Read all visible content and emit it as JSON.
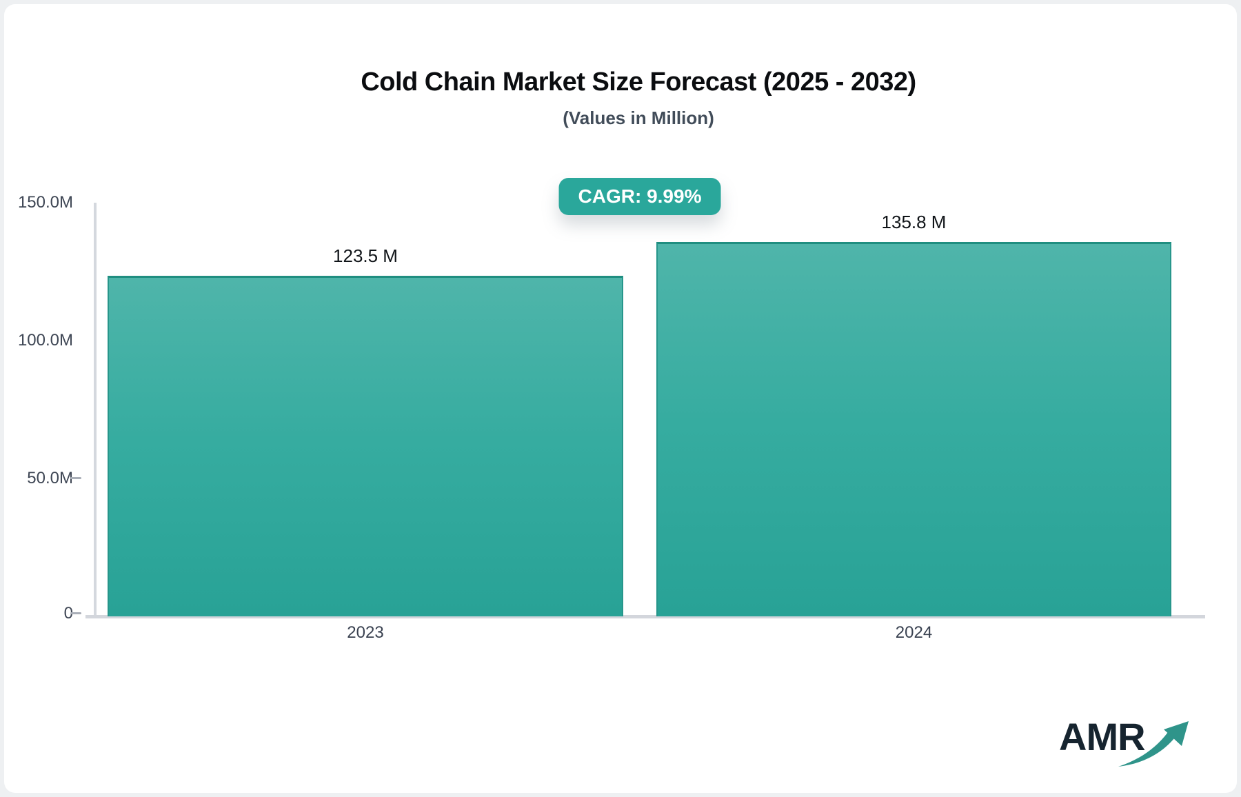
{
  "header": {
    "title": "Cold Chain Market Size Forecast (2025 - 2032)",
    "subtitle": "(Values in Million)"
  },
  "badge": {
    "label": "CAGR: 9.99%",
    "color": "#2aa79b"
  },
  "chart_data": {
    "type": "bar",
    "title": "Cold Chain Market Size Forecast (2025 - 2032)",
    "subtitle": "(Values in Million)",
    "unit": "Million",
    "categories": [
      "2023",
      "2024"
    ],
    "values": [
      123.5,
      135.8
    ],
    "value_labels": [
      "123.5 M",
      "135.8 M"
    ],
    "cagr_percent": 9.99,
    "xlabel": "",
    "ylabel": "",
    "ylim": [
      0,
      150
    ],
    "yticks": [
      {
        "value": 0,
        "label": "0",
        "dash": true
      },
      {
        "value": 50,
        "label": "50.0M",
        "dash": true
      },
      {
        "value": 100,
        "label": "100.0M",
        "dash": false
      },
      {
        "value": 150,
        "label": "150.0M",
        "dash": false
      }
    ],
    "grid": false,
    "legend": "none",
    "bar_color_top": "#4fb5aa",
    "bar_color_bottom": "#28a296",
    "bar_border_color": "#1f8e80",
    "axis_line_color": "#d4d8de",
    "label_color": "#3e4654"
  },
  "logo": {
    "text": "AMR",
    "text_color": "#16242f",
    "arrow_color": "#2f948a"
  }
}
